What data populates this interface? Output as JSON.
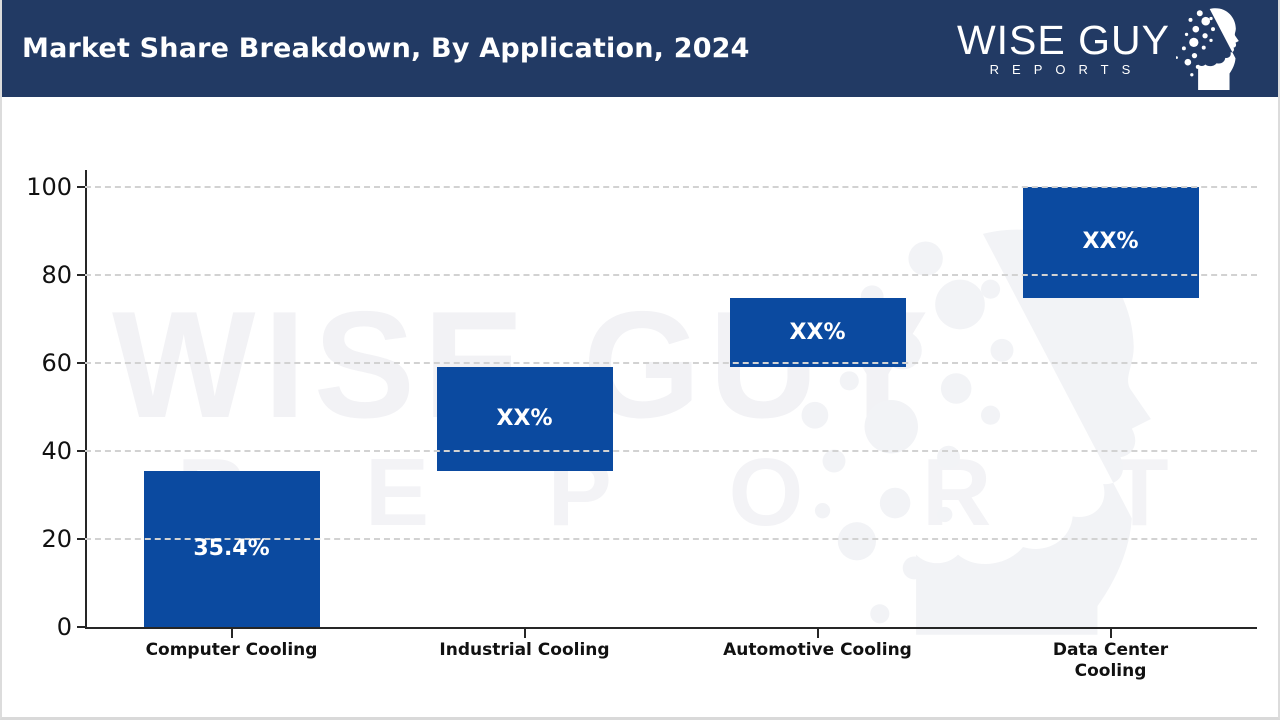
{
  "header": {
    "title": "Market Share Breakdown, By Application, 2024",
    "background_color": "#223a64",
    "logo": {
      "line1": "WISE GUY",
      "line2": "REPORTS"
    }
  },
  "watermark": {
    "line1": "WISE GUY",
    "line2": "R E P O R T S"
  },
  "chart_data": {
    "type": "bar",
    "subtype": "floating-waterfall",
    "title": "Market Share Breakdown, By Application, 2024",
    "categories": [
      "Computer Cooling",
      "Industrial Cooling",
      "Automotive Cooling",
      "Data Center Cooling"
    ],
    "category_lines": [
      [
        "Computer Cooling"
      ],
      [
        "Industrial Cooling"
      ],
      [
        "Automotive Cooling"
      ],
      [
        "Data Center",
        "Cooling"
      ]
    ],
    "series": [
      {
        "name": "Market Share (%)",
        "segments": [
          {
            "category": "Computer Cooling",
            "start": 0,
            "end": 35.4,
            "label": "35.4%"
          },
          {
            "category": "Industrial Cooling",
            "start": 35.4,
            "end": 59.0,
            "label": "XX%"
          },
          {
            "category": "Automotive Cooling",
            "start": 59.0,
            "end": 74.8,
            "label": "XX%"
          },
          {
            "category": "Data Center Cooling",
            "start": 74.8,
            "end": 100.0,
            "label": "XX%"
          }
        ]
      }
    ],
    "yticks": [
      0,
      20,
      40,
      60,
      80,
      100
    ],
    "ylim": [
      0,
      105
    ],
    "xlabel": "",
    "ylabel": "",
    "grid": "horizontal-dashed",
    "legend": "none",
    "bar_color": "#0b4aa0",
    "bar_label_color": "#ffffff",
    "axis_color": "#262626",
    "gridline_color": "#d2d2d2"
  }
}
